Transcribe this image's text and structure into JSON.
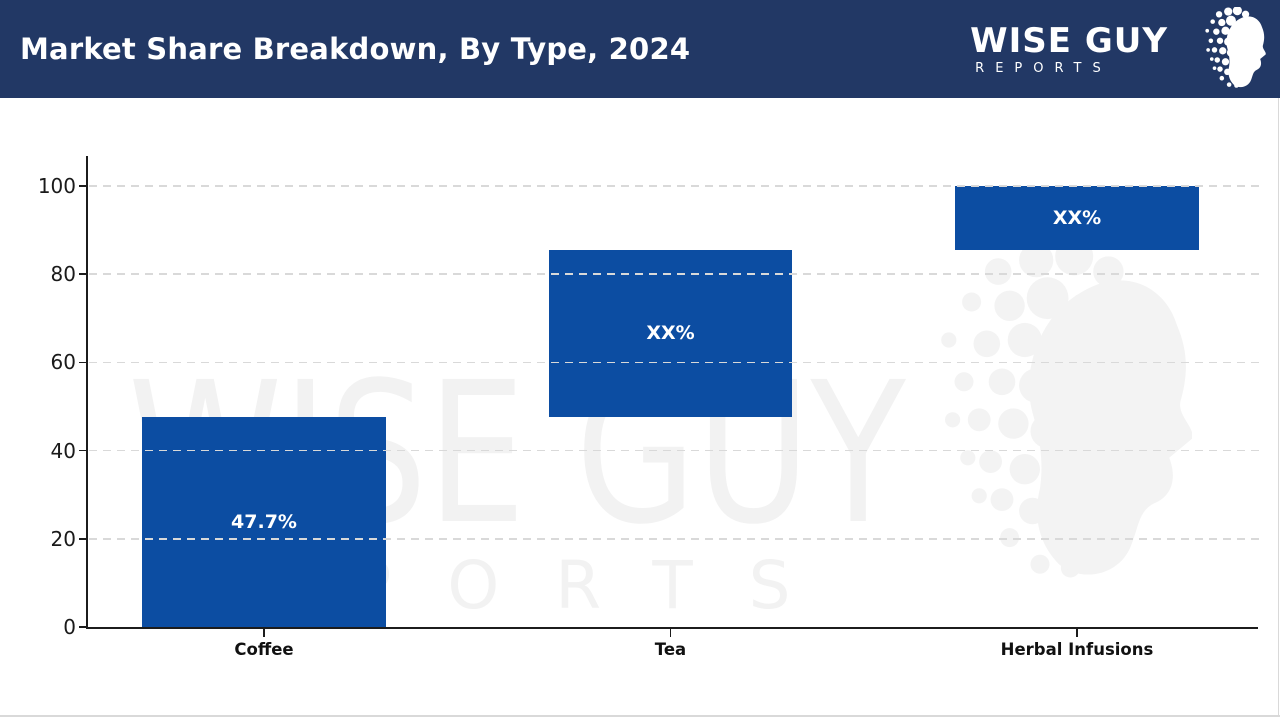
{
  "header": {
    "title": "Market Share Breakdown, By Type, 2024",
    "logo": {
      "wordmark": "WISE GUY",
      "subtext": "REPORTS"
    }
  },
  "watermark": {
    "line1": "WISE GUY",
    "line2": "REPORTS"
  },
  "colors": {
    "header_bg": "#223865",
    "bar": "#0c4da2",
    "grid": "#d9d9d9",
    "axis": "#1c1c1c",
    "label_on_bar": "#ffffff"
  },
  "chart_data": {
    "type": "bar",
    "subtype": "waterfall",
    "title": "Market Share Breakdown, By Type, 2024",
    "categories": [
      "Coffee",
      "Tea",
      "Herbal Infusions"
    ],
    "segments": [
      {
        "category": "Coffee",
        "start": 0,
        "end": 47.7,
        "label": "47.7%"
      },
      {
        "category": "Tea",
        "start": 47.7,
        "end": 85.5,
        "label": "XX%"
      },
      {
        "category": "Herbal Infusions",
        "start": 85.5,
        "end": 100,
        "label": "XX%"
      }
    ],
    "y_ticks": [
      0,
      20,
      40,
      60,
      80,
      100
    ],
    "ylim": [
      0,
      106.8
    ],
    "xlabel": "",
    "ylabel": "",
    "grid": "horizontal-dashed",
    "legend": "none"
  }
}
